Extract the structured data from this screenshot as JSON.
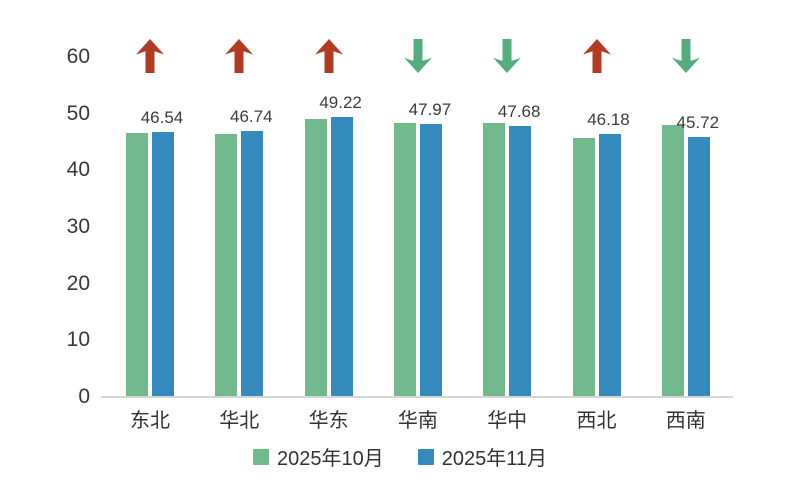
{
  "chart_data": {
    "type": "bar",
    "title": "",
    "categories": [
      "东北",
      "华北",
      "华东",
      "华南",
      "华中",
      "西北",
      "西南"
    ],
    "series": [
      {
        "name": "2025年10月",
        "color": "#72b98d",
        "values": [
          46.4,
          46.2,
          48.8,
          48.2,
          48.1,
          45.6,
          47.9
        ]
      },
      {
        "name": "2025年11月",
        "color": "#3489bd",
        "values": [
          46.54,
          46.74,
          49.22,
          47.97,
          47.68,
          46.18,
          45.72
        ]
      }
    ],
    "value_labels": [
      "46.54",
      "46.74",
      "49.22",
      "47.97",
      "47.68",
      "46.18",
      "45.72"
    ],
    "value_labels_series": "2025年11月",
    "trends": [
      "up",
      "up",
      "up",
      "down",
      "down",
      "up",
      "down"
    ],
    "trend_colors": {
      "up": "#b13a20",
      "down": "#53ad7c"
    },
    "y_ticks": [
      60,
      50,
      40,
      30,
      20,
      10,
      0
    ],
    "ylim": [
      0,
      60
    ],
    "grid": false,
    "legend_position": "bottom",
    "legend": [
      {
        "label": "2025年10月",
        "color": "#72b98d"
      },
      {
        "label": "2025年11月",
        "color": "#3489bd"
      }
    ]
  }
}
